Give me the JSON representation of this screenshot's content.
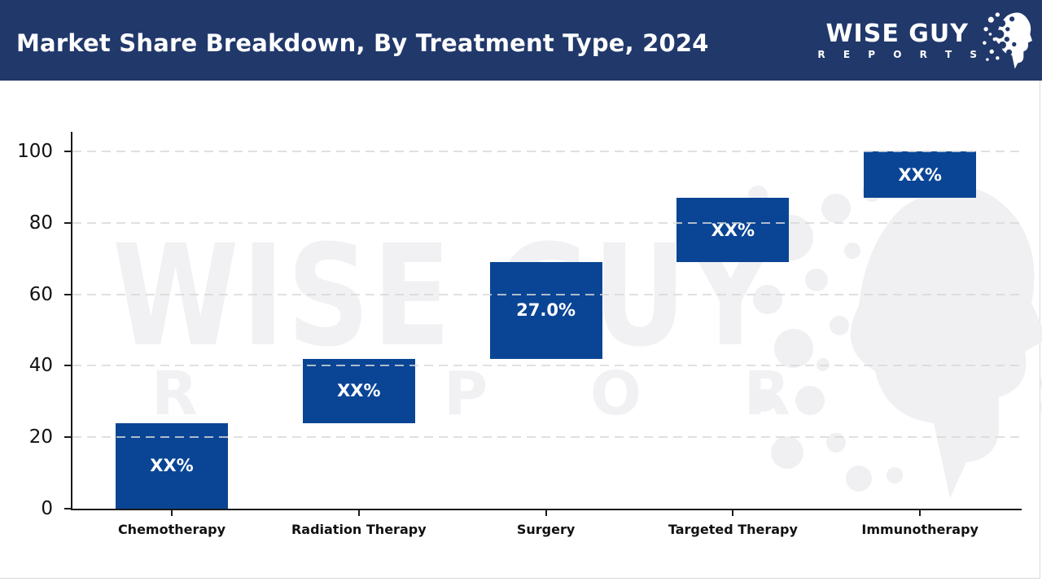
{
  "header": {
    "title": "Market Share Breakdown, By Treatment Type, 2024",
    "bg_color": "#21386b",
    "logo": {
      "line1": "WISE GUY",
      "line2": "R E P O R T S"
    }
  },
  "watermark": {
    "line1": "WISE GUY",
    "line2": "R E P O R T S"
  },
  "chart_data": {
    "type": "bar",
    "subtype": "waterfall",
    "title": "Market Share Breakdown, By Treatment Type, 2024",
    "xlabel": "",
    "ylabel": "",
    "ylim": [
      0,
      100
    ],
    "yticks": [
      0,
      20,
      40,
      60,
      80,
      100
    ],
    "grid": "horizontal-dashed",
    "legend": "none",
    "bar_color": "#0a4595",
    "bar_label_color": "#ffffff",
    "categories": [
      "Chemotherapy",
      "Radiation Therapy",
      "Surgery",
      "Targeted Therapy",
      "Immunotherapy"
    ],
    "bars": [
      {
        "category": "Chemotherapy",
        "start": 0,
        "end": 24,
        "value": 24,
        "label": "XX%"
      },
      {
        "category": "Radiation Therapy",
        "start": 24,
        "end": 42,
        "value": 18,
        "label": "XX%"
      },
      {
        "category": "Surgery",
        "start": 42,
        "end": 69,
        "value": 27,
        "label": "27.0%"
      },
      {
        "category": "Targeted Therapy",
        "start": 69,
        "end": 87,
        "value": 18,
        "label": "XX%"
      },
      {
        "category": "Immunotherapy",
        "start": 87,
        "end": 100,
        "value": 13,
        "label": "XX%"
      }
    ]
  }
}
